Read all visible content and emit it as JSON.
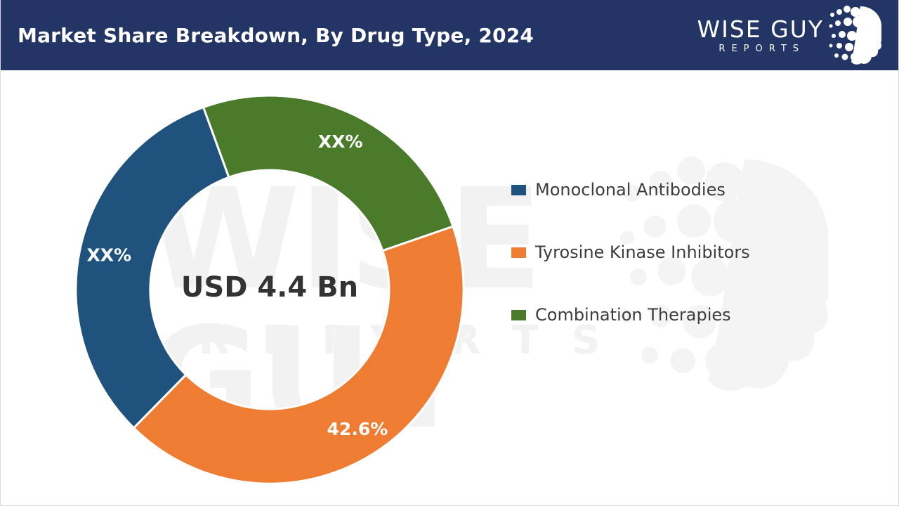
{
  "header": {
    "title": "Market Share Breakdown, By Drug Type, 2024",
    "background_color": "#223564",
    "logo": {
      "line1": "WISE GUY",
      "line2": "REPORTS",
      "face_icon": "dotted-head-profile"
    }
  },
  "watermark": {
    "line1": "WISE GUY",
    "line2": "REPORTS",
    "color": "#f2f2f2"
  },
  "chart_data": {
    "type": "pie",
    "subtype": "donut",
    "title": "Market Share Breakdown, By Drug Type, 2024",
    "center_label": "USD 4.4 Bn",
    "legend_position": "right",
    "separator_color": "#ffffff",
    "slice_label_color": "#ffffff",
    "slices": [
      {
        "name": "Monoclonal Antibodies",
        "color": "#1f537e",
        "label": "XX%",
        "value_pct_shown": "XX%",
        "value_pct_estimated": 32.1,
        "start_deg": 224.5,
        "end_deg": 340
      },
      {
        "name": "Tyrosine Kinase Inhibitors",
        "color": "#ee7d33",
        "label": "42.6%",
        "value_pct_shown": "42.6%",
        "value_pct": 42.6,
        "start_deg": 71,
        "end_deg": 224.5
      },
      {
        "name": "Combination Therapies",
        "color": "#4a7b2b",
        "label": "XX%",
        "value_pct_shown": "XX%",
        "value_pct_estimated": 25.3,
        "start_deg": 340,
        "end_deg": 431
      }
    ]
  }
}
